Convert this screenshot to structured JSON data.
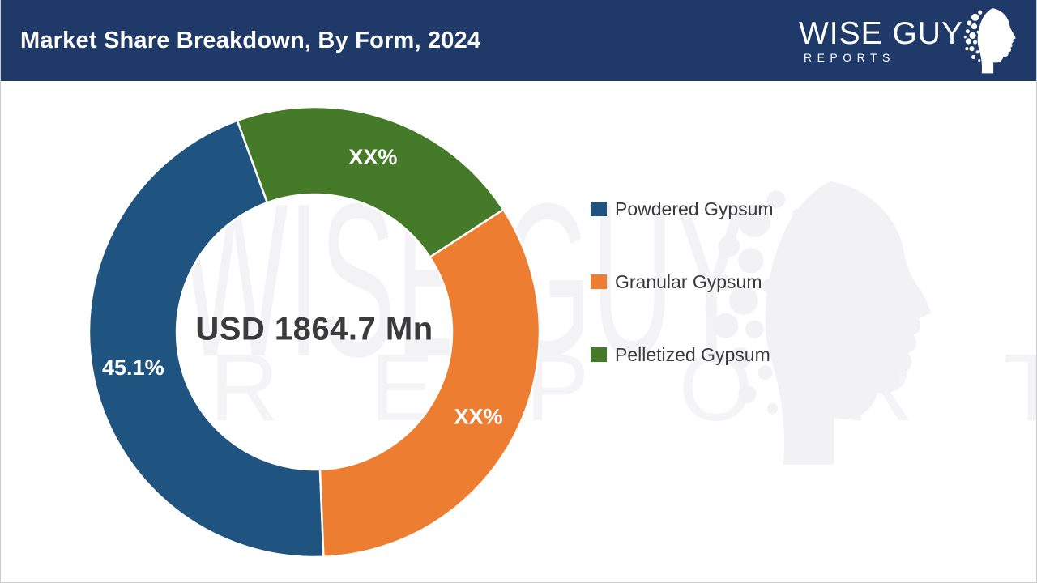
{
  "header": {
    "title": "Market Share Breakdown, By Form, 2024",
    "logo": {
      "brand_top": "WISE GUY",
      "brand_bottom": "REPORTS"
    }
  },
  "watermark": {
    "line1": "WISE GUY",
    "line2": "R E P O R T S"
  },
  "chart_data": {
    "type": "pie",
    "style": "donut",
    "title": "Market Share Breakdown, By Form, 2024",
    "center_label": "USD 1864.7 Mn",
    "start_angle_deg": 110,
    "direction": "counterclockwise",
    "inner_radius_ratio": 0.61,
    "legend_position": "right",
    "segments": [
      {
        "name": "Powdered Gypsum",
        "slice_label": "45.1%",
        "value_pct": 45.1,
        "color": "#1F5480"
      },
      {
        "name": "Granular Gypsum",
        "slice_label": "XX%",
        "value_pct": 33.5,
        "color": "#ED7D31"
      },
      {
        "name": "Pelletized Gypsum",
        "slice_label": "XX%",
        "value_pct": 21.4,
        "color": "#457A29"
      }
    ]
  },
  "colors": {
    "header_bg": "#1F3A68",
    "center_text": "#3B3B3B",
    "legend_text": "#3A3A3A",
    "slice_label_text": "#FFFFFF",
    "watermark": "#F3F3F5",
    "page_border": "#CCCCCC",
    "background": "#FFFFFF"
  }
}
